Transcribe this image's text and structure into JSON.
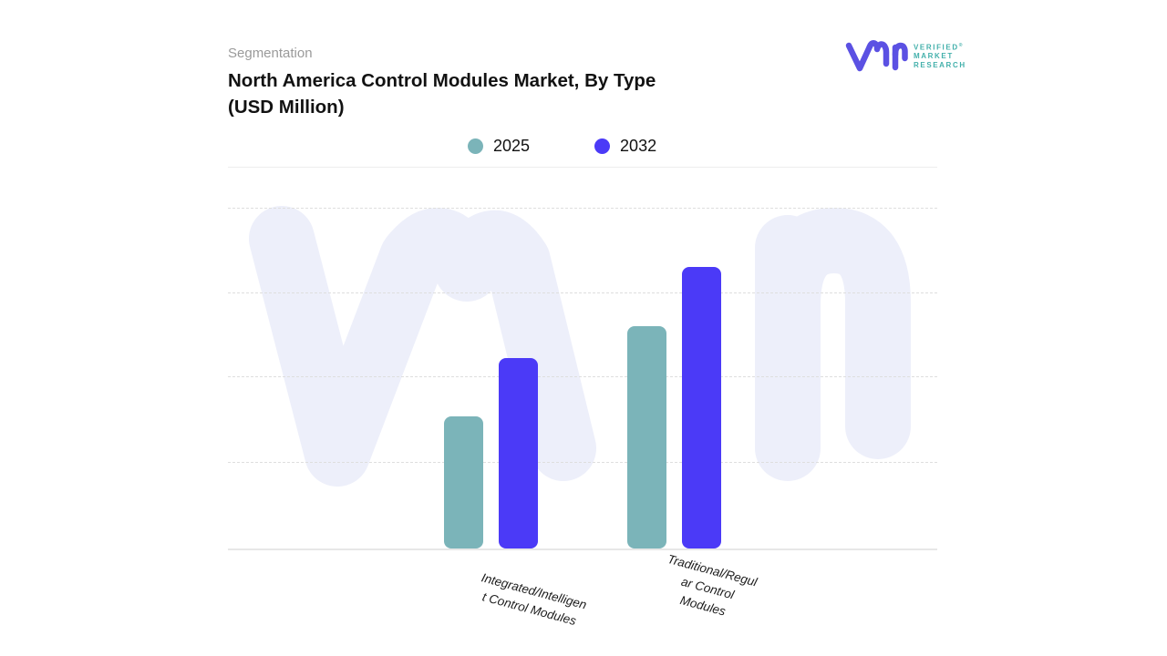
{
  "header": {
    "eyebrow": "Segmentation",
    "title_display": "North America Control Modules Market, By Type\n(USD Million)"
  },
  "logo": {
    "brand_lines": {
      "line1": "VERIFIED",
      "line2": "MARKET",
      "line3": "RESEARCH"
    },
    "reg_mark": "®",
    "glyph_color": "#5b51e3",
    "text_color": "#43b0ab"
  },
  "chart_data": {
    "type": "bar",
    "title": "North America Control Modules Market, By Type (USD Million)",
    "unit": "USD Million",
    "categories": [
      "Integrated/Intelligent Control Modules",
      "Traditional/Regular Control Modules"
    ],
    "category_label_display": [
      "Integrated/Intelligen\nt Control Modules",
      "Traditional/Regul\nar Control\nModules"
    ],
    "series": [
      {
        "name": "2025",
        "color": "#7bb4b9",
        "values_pct_of_axis": [
          38.1,
          64.3
        ]
      },
      {
        "name": "2032",
        "color": "#4b3af7",
        "values_pct_of_axis": [
          55.1,
          81.4
        ]
      }
    ],
    "y_axis": {
      "tick_labels_visible": false,
      "range_pct": [
        0,
        100
      ],
      "gridline_count": 4,
      "gridline_style": "dashed"
    },
    "legend_position": "top-center",
    "grid": true,
    "watermark_color": "#edeffa"
  }
}
